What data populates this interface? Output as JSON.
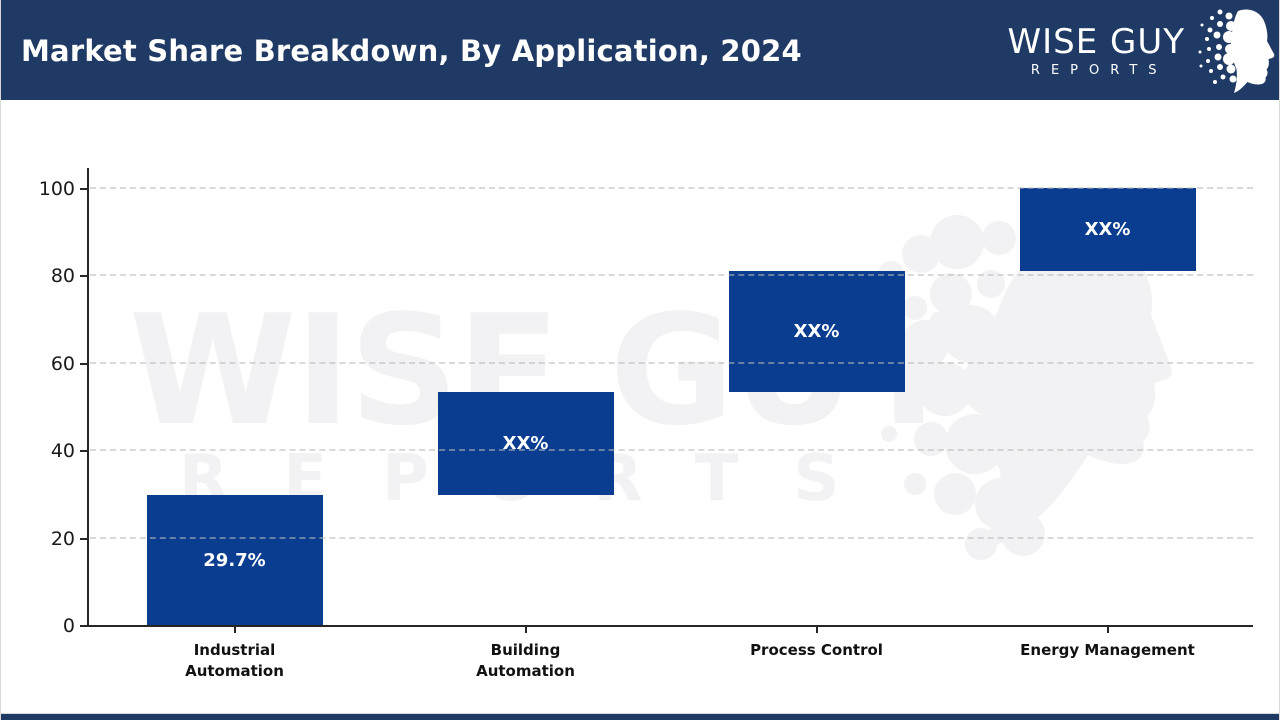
{
  "header": {
    "title": "Market Share Breakdown, By Application, 2024",
    "background_color": "#203a66",
    "logo": {
      "primary": "WISE GUY",
      "secondary": "REPORTS"
    }
  },
  "watermark": {
    "line1": "WISE GUY",
    "line2": "REPORTS",
    "color": "#f2f2f4"
  },
  "footer": {
    "background_color": "#203a66"
  },
  "chart_data": {
    "type": "bar",
    "subtype": "waterfall",
    "title": "Market Share Breakdown, By Application, 2024",
    "categories": [
      "Industrial\nAutomation",
      "Building\nAutomation",
      "Process Control",
      "Energy Management"
    ],
    "series": [
      {
        "name": "Market share (%)",
        "segments": [
          {
            "category": "Industrial\nAutomation",
            "start": 0,
            "end": 29.7,
            "label": "29.7%"
          },
          {
            "category": "Building\nAutomation",
            "start": 29.7,
            "end": 53.2,
            "label": "XX%"
          },
          {
            "category": "Process Control",
            "start": 53.2,
            "end": 81.0,
            "label": "XX%"
          },
          {
            "category": "Energy Management",
            "start": 81.0,
            "end": 100.0,
            "label": "XX%"
          }
        ]
      }
    ],
    "xlabel": "",
    "ylabel": "",
    "ylim": [
      0,
      104.5
    ],
    "yticks": [
      0,
      20,
      40,
      60,
      80,
      100
    ],
    "grid": {
      "axis": "y",
      "style": "dashed",
      "color": "#d8d8d8",
      "over_bars": true
    },
    "legend": "none",
    "bar_color": "#0a3d8f",
    "bar_label_color": "#ffffff",
    "axis_color": "#262626",
    "tick_label_color": "#1a1a1a"
  }
}
